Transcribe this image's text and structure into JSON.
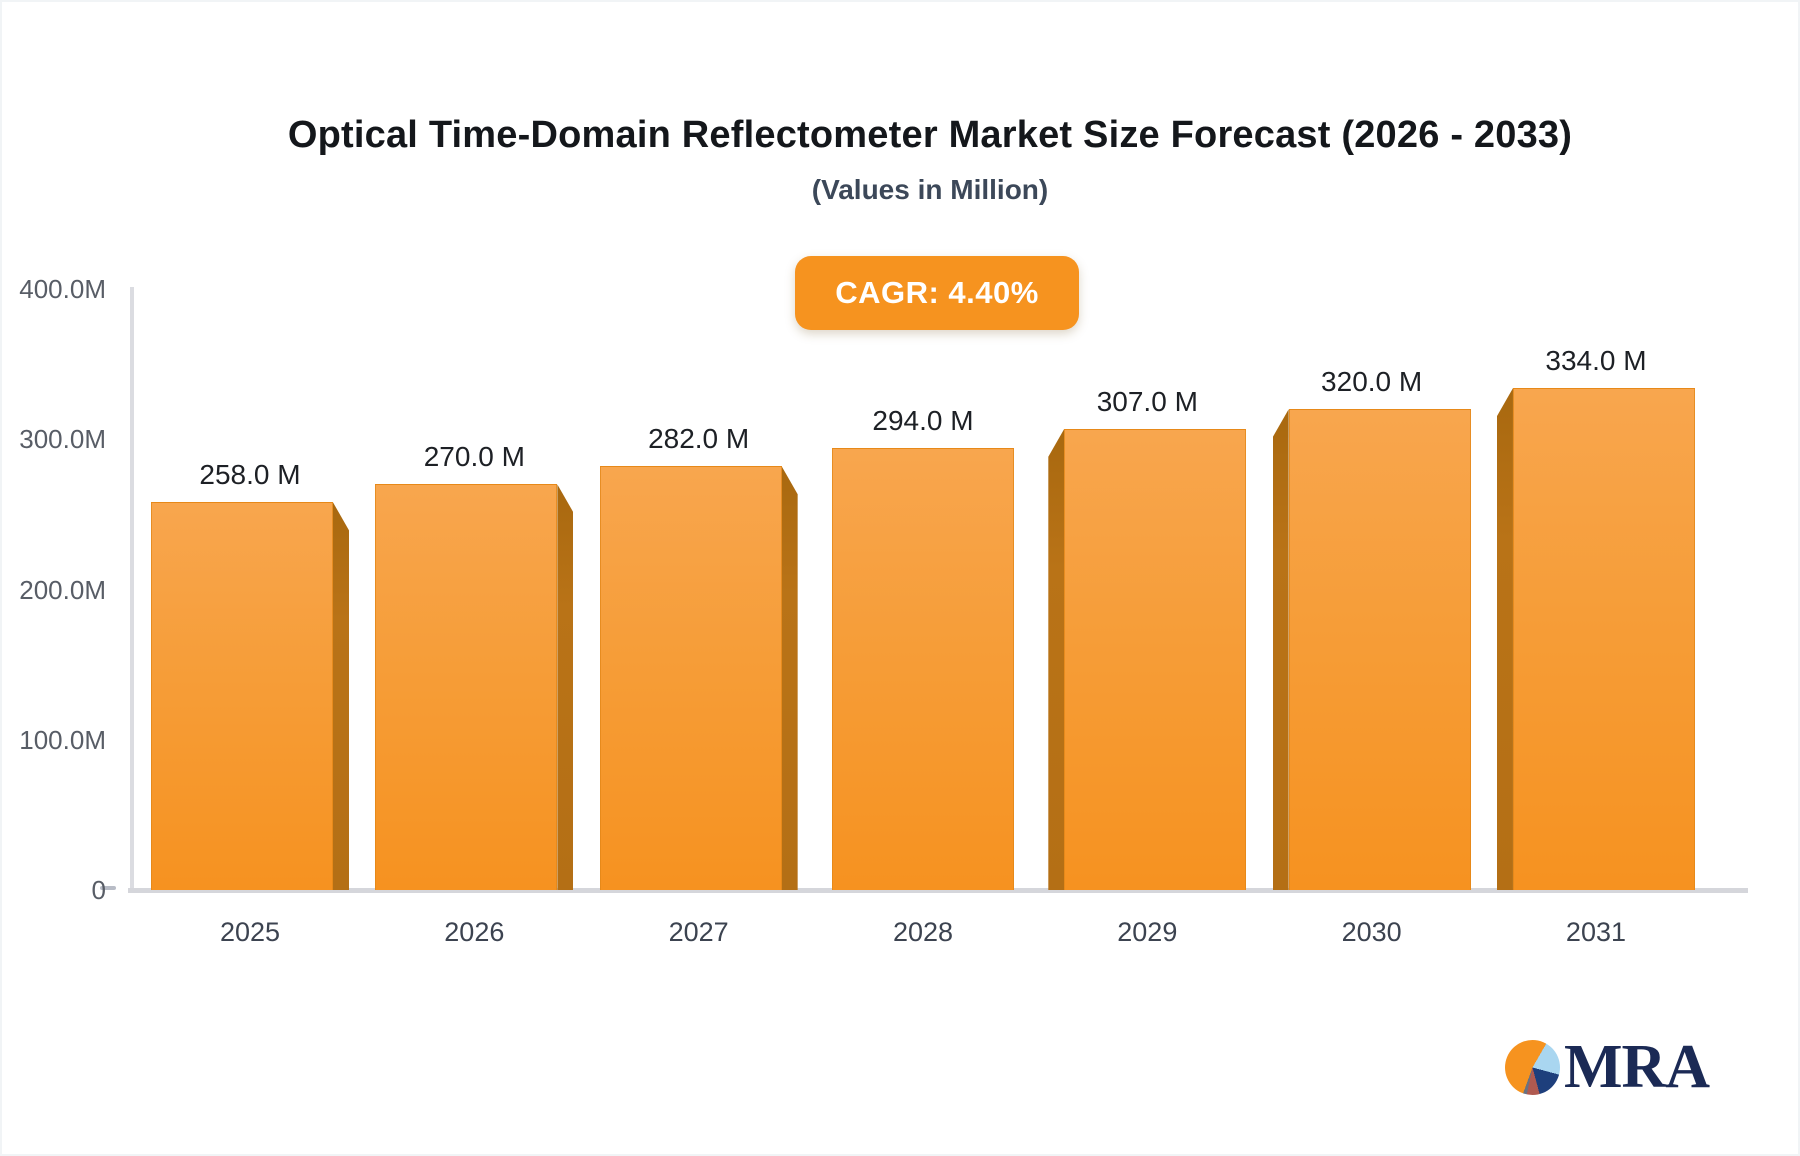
{
  "header": {
    "title": "Optical Time-Domain Reflectometer Market Size Forecast (2026 - 2033)",
    "subtitle": "(Values in Million)",
    "cagr_label": "CAGR: 4.40%"
  },
  "chart_data": {
    "type": "bar",
    "title": "Optical Time-Domain Reflectometer Market Size Forecast (2026 - 2033)",
    "subtitle": "(Values in Million)",
    "cagr": "4.40%",
    "categories": [
      "2025",
      "2026",
      "2027",
      "2028",
      "2029",
      "2030",
      "2031"
    ],
    "values": [
      258.0,
      270.0,
      282.0,
      294.0,
      307.0,
      320.0,
      334.0
    ],
    "value_labels": [
      "258.0 M",
      "270.0 M",
      "282.0 M",
      "294.0 M",
      "307.0 M",
      "320.0 M",
      "334.0 M"
    ],
    "y_ticks": [
      {
        "value": 400,
        "label": "400.0M"
      },
      {
        "value": 300,
        "label": "300.0M"
      },
      {
        "value": 200,
        "label": "200.0M"
      },
      {
        "value": 100,
        "label": "100.0M"
      },
      {
        "value": 0,
        "label": "0"
      }
    ],
    "ylim": [
      0,
      400
    ],
    "grid": false,
    "legend": false,
    "bar_color": "#f6931f",
    "bar_side_color": "#b4700f"
  },
  "logo": {
    "text": "MRA"
  }
}
